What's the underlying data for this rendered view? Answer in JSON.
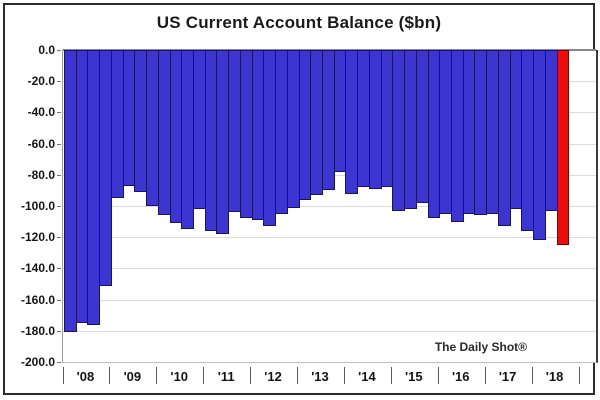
{
  "title": "US Current Account Balance ($bn)",
  "watermark": "The Daily Shot®",
  "chart_data": {
    "type": "bar",
    "title": "US Current Account Balance ($bn)",
    "ylabel": "",
    "xlabel": "",
    "unit": "$bn",
    "ylim": [
      -200,
      0
    ],
    "ytick_step": 20,
    "ytick_labels": [
      "0.0",
      "-20.0",
      "-40.0",
      "-60.0",
      "-80.0",
      "-100.0",
      "-120.0",
      "-140.0",
      "-160.0",
      "-180.0",
      "-200.0"
    ],
    "grid": true,
    "legend_position": "none",
    "year_labels": [
      "'08",
      "'09",
      "'10",
      "'11",
      "'12",
      "'13",
      "'14",
      "'15",
      "'16",
      "'17",
      "'18"
    ],
    "quarters": [
      "2008 Q1",
      "2008 Q2",
      "2008 Q3",
      "2008 Q4",
      "2009 Q1",
      "2009 Q2",
      "2009 Q3",
      "2009 Q4",
      "2010 Q1",
      "2010 Q2",
      "2010 Q3",
      "2010 Q4",
      "2011 Q1",
      "2011 Q2",
      "2011 Q3",
      "2011 Q4",
      "2012 Q1",
      "2012 Q2",
      "2012 Q3",
      "2012 Q4",
      "2013 Q1",
      "2013 Q2",
      "2013 Q3",
      "2013 Q4",
      "2014 Q1",
      "2014 Q2",
      "2014 Q3",
      "2014 Q4",
      "2015 Q1",
      "2015 Q2",
      "2015 Q3",
      "2015 Q4",
      "2016 Q1",
      "2016 Q2",
      "2016 Q3",
      "2016 Q4",
      "2017 Q1",
      "2017 Q2",
      "2017 Q3",
      "2017 Q4",
      "2018 Q1",
      "2018 Q2",
      "2018 Q3"
    ],
    "values": [
      -181,
      -175,
      -176,
      -151,
      -95,
      -87,
      -91,
      -100,
      -106,
      -111,
      -115,
      -102,
      -116,
      -118,
      -104,
      -108,
      -109,
      -113,
      -105,
      -101,
      -96,
      -93,
      -90,
      -78,
      -92,
      -88,
      -89,
      -88,
      -103,
      -102,
      -98,
      -108,
      -105,
      -110,
      -105,
      -106,
      -105,
      -113,
      -102,
      -116,
      -122,
      -103,
      -125
    ],
    "bar_color": "#3c35d1",
    "bar_border_color": "#17126b",
    "highlight_index": 42,
    "highlight_color": "#ee0d0d",
    "highlight_border_color": "#7a0000",
    "slots_total": 44
  }
}
